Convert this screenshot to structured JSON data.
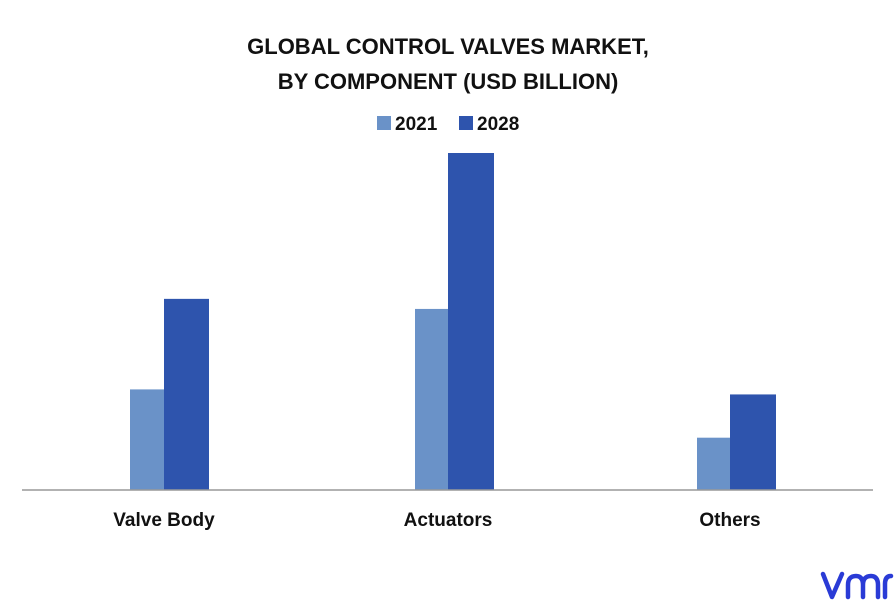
{
  "chart_data": {
    "type": "bar",
    "title_lines": [
      "GLOBAL CONTROL VALVES MARKET,",
      "BY COMPONENT (USD BILLION)"
    ],
    "categories": [
      "Valve Body",
      "Actuators",
      "Others"
    ],
    "series": [
      {
        "name": "2021",
        "color": "#6a92c8",
        "values": [
          1.0,
          1.8,
          0.52
        ]
      },
      {
        "name": "2028",
        "color": "#2e54ad",
        "values": [
          1.9,
          3.35,
          0.95
        ]
      }
    ],
    "ylim": [
      0,
      3.35
    ],
    "grid": false,
    "axis_line_color": "#999999",
    "legend_position": "top-center"
  },
  "logo": {
    "text": "vmr",
    "color": "#2a3bd6"
  }
}
